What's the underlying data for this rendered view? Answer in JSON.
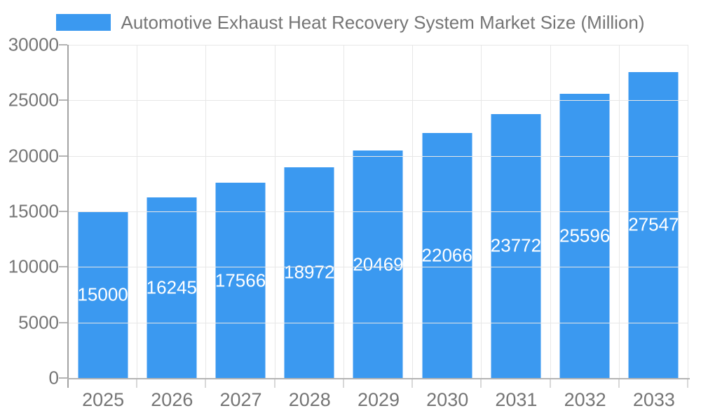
{
  "legend": {
    "swatch_color": "#3b99f0"
  },
  "chart_data": {
    "type": "bar",
    "title": "",
    "series_name": "Automotive Exhaust Heat Recovery System Market Size (Million)",
    "categories": [
      "2025",
      "2026",
      "2027",
      "2028",
      "2029",
      "2030",
      "2031",
      "2032",
      "2033"
    ],
    "values": [
      15000,
      16245,
      17566,
      18972,
      20469,
      22066,
      23772,
      25596,
      27547
    ],
    "xlabel": "",
    "ylabel": "",
    "ylim": [
      0,
      30000
    ],
    "yticks": [
      0,
      5000,
      10000,
      15000,
      20000,
      25000,
      30000
    ],
    "grid": true,
    "legend_position": "top",
    "bar_color": "#3b99f0",
    "value_label_color": "#ffffff",
    "axis_text_color": "#757575",
    "gridline_color": "#e7e7e7"
  }
}
